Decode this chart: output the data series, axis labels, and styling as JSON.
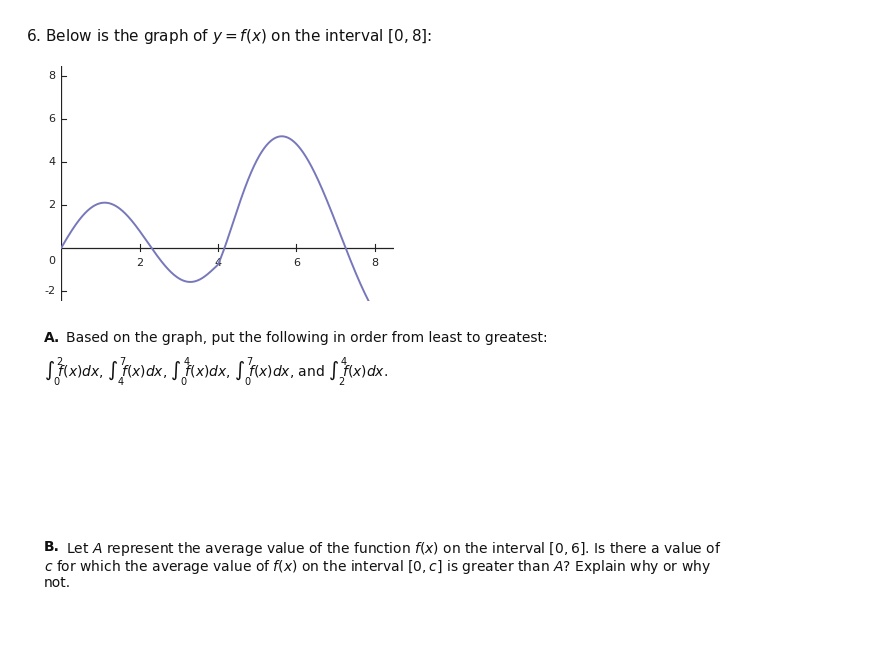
{
  "title_text": "6. Below is the graph of $y = f(x)$ on the interval $[0,8]$:",
  "title_fontsize": 11,
  "graph_xlim": [
    0,
    8.5
  ],
  "graph_ylim": [
    -2.5,
    8.5
  ],
  "graph_xticks": [
    0,
    2,
    4,
    6,
    8
  ],
  "graph_yticks": [
    -2,
    0,
    2,
    4,
    6,
    8
  ],
  "curve_color": "#7777bb",
  "bg_color": "#ffffff",
  "axis_color": "#222222",
  "text_color": "#111111",
  "font_size_body": 10,
  "font_size_math": 10
}
